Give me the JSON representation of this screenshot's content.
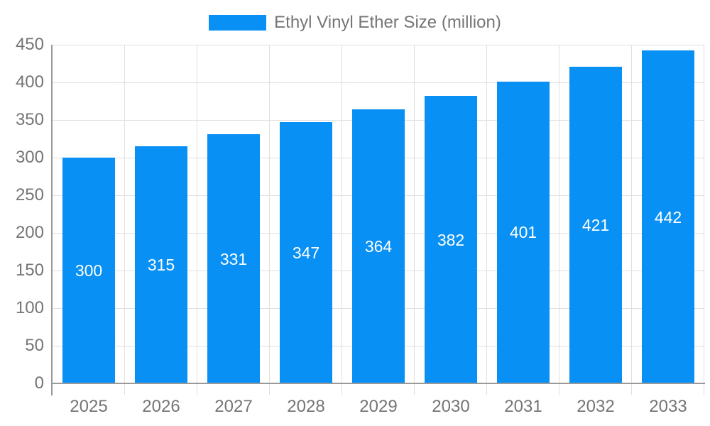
{
  "legend": {
    "label": "Ethyl Vinyl Ether Size (million)"
  },
  "chart_data": {
    "type": "bar",
    "title": "Ethyl Vinyl Ether Size (million)",
    "categories": [
      "2025",
      "2026",
      "2027",
      "2028",
      "2029",
      "2030",
      "2031",
      "2032",
      "2033"
    ],
    "values": [
      300,
      315,
      331,
      347,
      364,
      382,
      401,
      421,
      442
    ],
    "xlabel": "",
    "ylabel": "",
    "ylim": [
      0,
      450
    ],
    "ytick_step": 50,
    "yticks": [
      0,
      50,
      100,
      150,
      200,
      250,
      300,
      350,
      400,
      450
    ],
    "grid": true,
    "legend_position": "top-center",
    "value_labels": "inside-middle",
    "colors": {
      "bar": "#0890f5",
      "value_label": "#ffffff",
      "axis_text": "#757575",
      "grid_line": "#e0e0e0",
      "axis_line": "#999999",
      "background": "#ffffff"
    }
  }
}
